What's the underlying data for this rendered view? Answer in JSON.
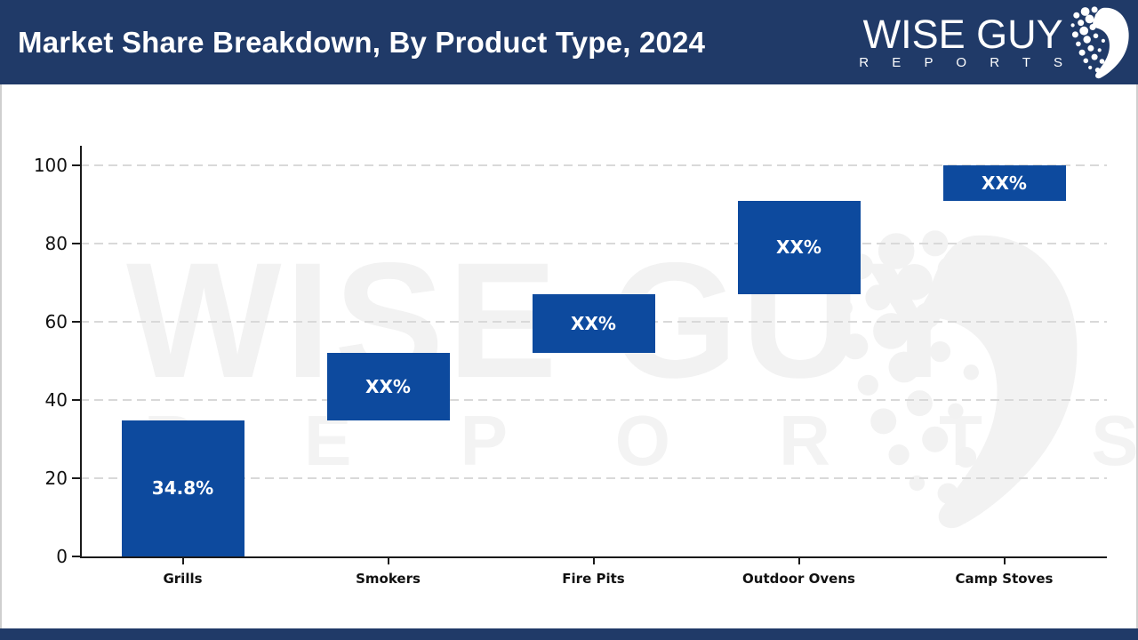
{
  "header": {
    "title": "Market Share Breakdown, By Product Type, 2024",
    "bg_color": "#203a68",
    "logo": {
      "line1": "WISE GUY",
      "line2": "R E P O R T S"
    }
  },
  "watermark": {
    "line1": "WISE GUY",
    "line2": "R E P O R T S"
  },
  "chart_data": {
    "type": "bar",
    "subtype": "waterfall",
    "title": "Market Share Breakdown, By Product Type, 2024",
    "xlabel": "",
    "ylabel": "",
    "categories": [
      "Grills",
      "Smokers",
      "Fire Pits",
      "Outdoor Ovens",
      "Camp Stoves"
    ],
    "values": [
      34.8,
      17.2,
      15.0,
      24.0,
      9.0
    ],
    "segment_starts": [
      0,
      34.8,
      52.0,
      67.0,
      91.0
    ],
    "segment_ends": [
      34.8,
      52.0,
      67.0,
      91.0,
      100.0
    ],
    "bar_labels": [
      "34.8%",
      "XX%",
      "XX%",
      "XX%",
      "XX%"
    ],
    "yticks": [
      0,
      20,
      40,
      60,
      80,
      100
    ],
    "ylim": [
      0,
      105
    ],
    "grid": true,
    "legend": false,
    "bar_color": "#0d4a9e",
    "bar_label_color": "#ffffff",
    "grid_color": "#d9d9d9",
    "axis_color": "#1a1a1a"
  },
  "footer": {
    "bg_color": "#203a68"
  }
}
